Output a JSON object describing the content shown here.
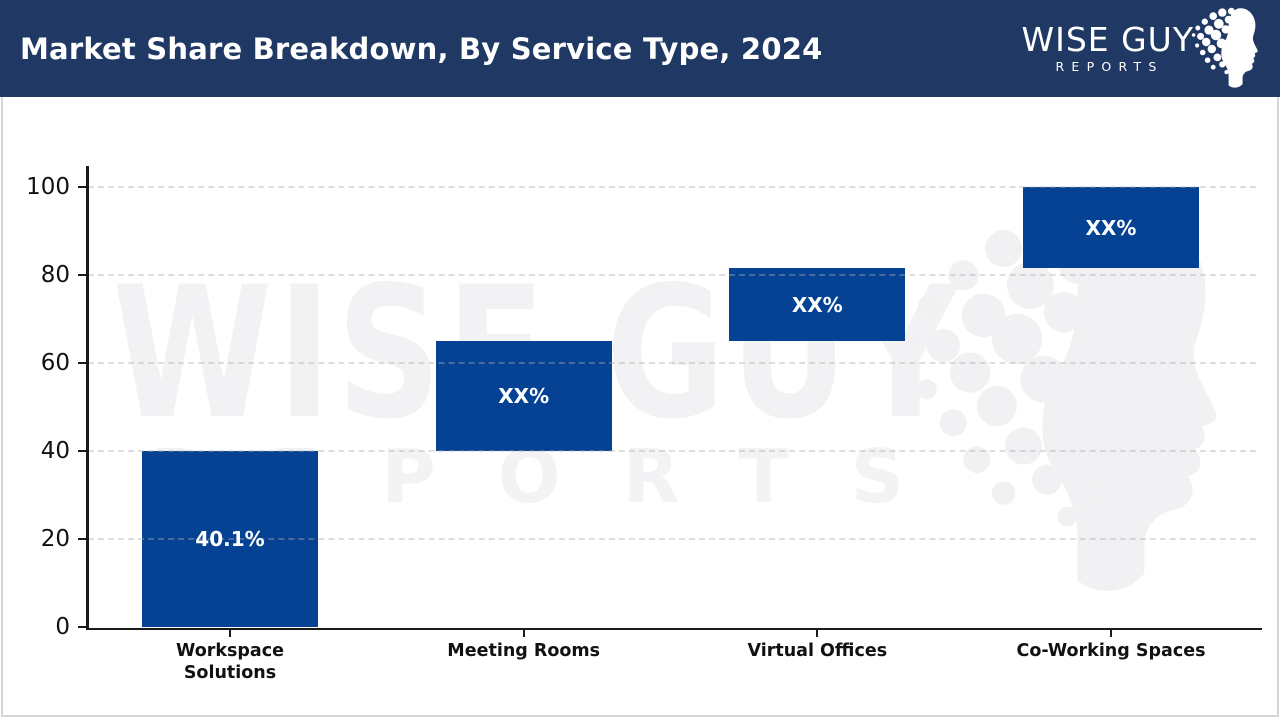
{
  "header": {
    "title": "Market Share Breakdown, By Service Type, 2024",
    "background_color": "#1f3864",
    "logo": {
      "name": "WISE GUY",
      "subtitle": "REPORTS"
    }
  },
  "watermark": {
    "line1": "WISE GUY",
    "line2": "REPORTS"
  },
  "chart_data": {
    "type": "bar",
    "subtype": "waterfall",
    "title": "Market Share Breakdown, By Service Type, 2024",
    "categories": [
      "Workspace\nSolutions",
      "Meeting Rooms",
      "Virtual Offices",
      "Co-Working Spaces"
    ],
    "segments": [
      {
        "category": "Workspace Solutions",
        "start": 0,
        "end": 40.1,
        "label": "40.1%"
      },
      {
        "category": "Meeting Rooms",
        "start": 40.1,
        "end": 65.0,
        "label": "XX%"
      },
      {
        "category": "Virtual Offices",
        "start": 65.0,
        "end": 81.5,
        "label": "XX%"
      },
      {
        "category": "Co-Working Spaces",
        "start": 81.5,
        "end": 100.0,
        "label": "XX%"
      }
    ],
    "yticks": [
      0,
      20,
      40,
      60,
      80,
      100
    ],
    "ylim": [
      0,
      105
    ],
    "xlabel": "",
    "ylabel": "",
    "grid": true,
    "grid_style": "dashed",
    "legend": false,
    "bar_color": "#064294",
    "bar_label_color": "#ffffff",
    "axis_color": "#1a1a1a",
    "tick_label_color": "#111111"
  }
}
